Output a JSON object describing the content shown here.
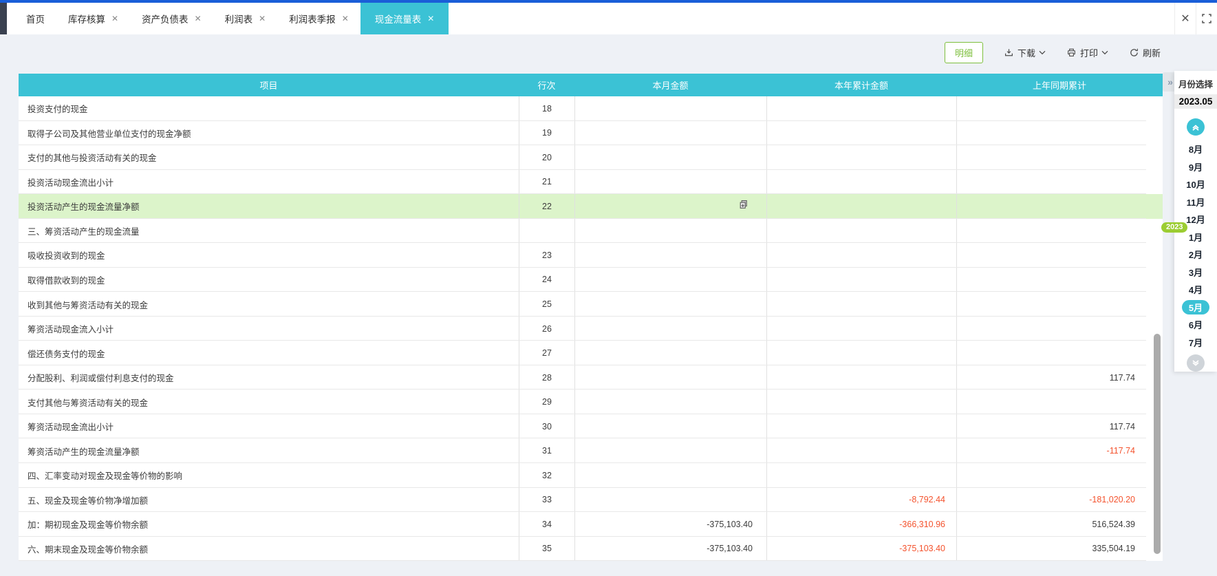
{
  "tabs": [
    {
      "label": "首页",
      "closable": false,
      "active": false
    },
    {
      "label": "库存核算",
      "closable": true,
      "active": false
    },
    {
      "label": "资产负债表",
      "closable": true,
      "active": false
    },
    {
      "label": "利润表",
      "closable": true,
      "active": false
    },
    {
      "label": "利润表季报",
      "closable": true,
      "active": false
    },
    {
      "label": "现金流量表",
      "closable": true,
      "active": true
    }
  ],
  "window_controls": {
    "close": "✕"
  },
  "toolbar": {
    "detail_label": "明细",
    "download_label": "下载",
    "print_label": "打印",
    "refresh_label": "刷新"
  },
  "table": {
    "columns": [
      "项目",
      "行次",
      "本月金额",
      "本年累计金额",
      "上年同期累计"
    ],
    "rows": [
      {
        "item": "投资支付的现金",
        "line": "18",
        "month": "",
        "ytd": "",
        "prior": "",
        "highlight": false,
        "copy_icon": false,
        "ytd_red": false,
        "prior_red": false
      },
      {
        "item": "取得子公司及其他营业单位支付的现金净额",
        "line": "19",
        "month": "",
        "ytd": "",
        "prior": "",
        "highlight": false,
        "copy_icon": false,
        "ytd_red": false,
        "prior_red": false
      },
      {
        "item": "支付的其他与投资活动有关的现金",
        "line": "20",
        "month": "",
        "ytd": "",
        "prior": "",
        "highlight": false,
        "copy_icon": false,
        "ytd_red": false,
        "prior_red": false
      },
      {
        "item": "投资活动现金流出小计",
        "line": "21",
        "month": "",
        "ytd": "",
        "prior": "",
        "highlight": false,
        "copy_icon": false,
        "ytd_red": false,
        "prior_red": false
      },
      {
        "item": "投资活动产生的现金流量净额",
        "line": "22",
        "month": "",
        "ytd": "",
        "prior": "",
        "highlight": true,
        "copy_icon": true,
        "ytd_red": false,
        "prior_red": false
      },
      {
        "item": "三、筹资活动产生的现金流量",
        "line": "",
        "month": "",
        "ytd": "",
        "prior": "",
        "highlight": false,
        "copy_icon": false,
        "ytd_red": false,
        "prior_red": false
      },
      {
        "item": "吸收投资收到的现金",
        "line": "23",
        "month": "",
        "ytd": "",
        "prior": "",
        "highlight": false,
        "copy_icon": false,
        "ytd_red": false,
        "prior_red": false
      },
      {
        "item": "取得借款收到的现金",
        "line": "24",
        "month": "",
        "ytd": "",
        "prior": "",
        "highlight": false,
        "copy_icon": false,
        "ytd_red": false,
        "prior_red": false
      },
      {
        "item": "收到其他与筹资活动有关的现金",
        "line": "25",
        "month": "",
        "ytd": "",
        "prior": "",
        "highlight": false,
        "copy_icon": false,
        "ytd_red": false,
        "prior_red": false
      },
      {
        "item": "筹资活动现金流入小计",
        "line": "26",
        "month": "",
        "ytd": "",
        "prior": "",
        "highlight": false,
        "copy_icon": false,
        "ytd_red": false,
        "prior_red": false
      },
      {
        "item": "偿还债务支付的现金",
        "line": "27",
        "month": "",
        "ytd": "",
        "prior": "",
        "highlight": false,
        "copy_icon": false,
        "ytd_red": false,
        "prior_red": false
      },
      {
        "item": "分配股利、利润或偿付利息支付的现金",
        "line": "28",
        "month": "",
        "ytd": "",
        "prior": "117.74",
        "highlight": false,
        "copy_icon": false,
        "ytd_red": false,
        "prior_red": false
      },
      {
        "item": "支付其他与筹资活动有关的现金",
        "line": "29",
        "month": "",
        "ytd": "",
        "prior": "",
        "highlight": false,
        "copy_icon": false,
        "ytd_red": false,
        "prior_red": false
      },
      {
        "item": "筹资活动现金流出小计",
        "line": "30",
        "month": "",
        "ytd": "",
        "prior": "117.74",
        "highlight": false,
        "copy_icon": false,
        "ytd_red": false,
        "prior_red": false
      },
      {
        "item": "筹资活动产生的现金流量净额",
        "line": "31",
        "month": "",
        "ytd": "",
        "prior": "-117.74",
        "highlight": false,
        "copy_icon": false,
        "ytd_red": false,
        "prior_red": true
      },
      {
        "item": "四、汇率变动对现金及现金等价物的影响",
        "line": "32",
        "month": "",
        "ytd": "",
        "prior": "",
        "highlight": false,
        "copy_icon": false,
        "ytd_red": false,
        "prior_red": false
      },
      {
        "item": "五、现金及现金等价物净增加额",
        "line": "33",
        "month": "",
        "ytd": "-8,792.44",
        "prior": "-181,020.20",
        "highlight": false,
        "copy_icon": false,
        "ytd_red": true,
        "prior_red": true
      },
      {
        "item": "加：期初现金及现金等价物余额",
        "line": "34",
        "month": "-375,103.40",
        "ytd": "-366,310.96",
        "prior": "516,524.39",
        "highlight": false,
        "copy_icon": false,
        "ytd_red": true,
        "prior_red": false
      },
      {
        "item": "六、期末现金及现金等价物余额",
        "line": "35",
        "month": "-375,103.40",
        "ytd": "-375,103.40",
        "prior": "335,504.19",
        "highlight": false,
        "copy_icon": false,
        "ytd_red": true,
        "prior_red": false
      }
    ]
  },
  "side_panel": {
    "expander": "»",
    "title": "月份选择",
    "period": "2023.05",
    "year_badge": "2023",
    "months": [
      "8月",
      "9月",
      "10月",
      "11月",
      "12月",
      "1月",
      "2月",
      "3月",
      "4月",
      "5月",
      "6月",
      "7月"
    ],
    "selected_month": "5月"
  },
  "colors": {
    "accent": "#3bc2d5",
    "green_button": "#7dbf3c",
    "highlight_row": "#dcf4ca",
    "negative": "#f4532e",
    "year_badge": "#9ccd32",
    "top_strip": "#1a5ed8"
  }
}
